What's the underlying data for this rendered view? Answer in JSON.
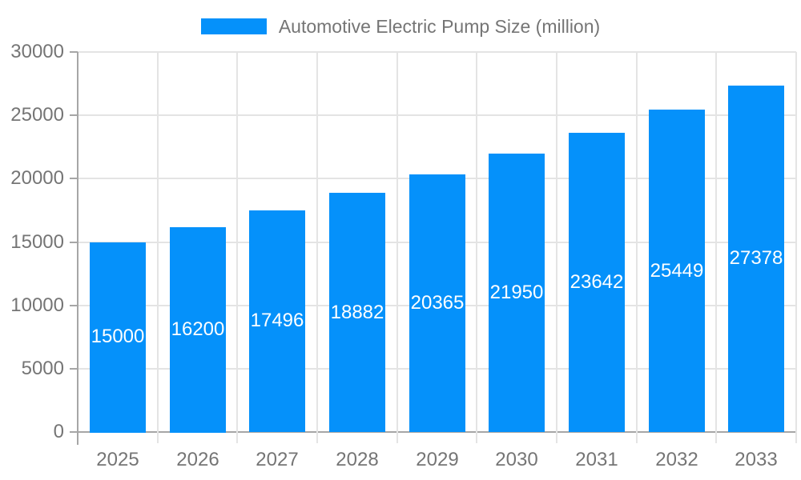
{
  "chart_data": {
    "type": "bar",
    "title": "Automotive Electric Pump Size (million)",
    "legend": [
      "Automotive Electric Pump Size (million)"
    ],
    "legend_position": "top-center",
    "categories": [
      "2025",
      "2026",
      "2027",
      "2028",
      "2029",
      "2030",
      "2031",
      "2032",
      "2033"
    ],
    "values": [
      15000,
      16200,
      17496,
      18882,
      20365,
      21950,
      23642,
      25449,
      27378
    ],
    "bar_value_labels": [
      "15000",
      "16200",
      "17496",
      "18882",
      "20365",
      "21950",
      "23642",
      "25449",
      "27378"
    ],
    "xlabel": "",
    "ylabel": "",
    "ylim": [
      0,
      30000
    ],
    "yticks": [
      0,
      5000,
      10000,
      15000,
      20000,
      25000,
      30000
    ],
    "grid": true,
    "colors": {
      "bar": "#0591FA",
      "bar_label_text": "#FFFFFF",
      "axis": "#A6A6A6",
      "gridline": "#E4E4E4",
      "tick_text": "#757575",
      "legend_text": "#757575"
    }
  }
}
